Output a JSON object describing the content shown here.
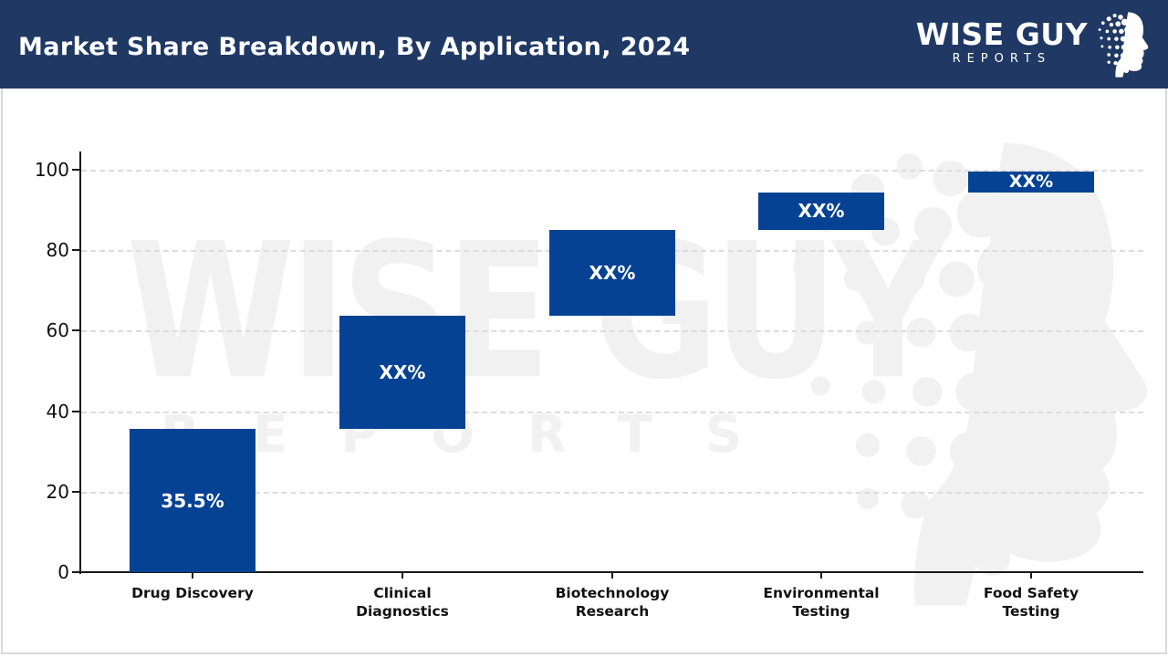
{
  "header": {
    "title": "Market Share Breakdown, By Application, 2024",
    "logo": {
      "line1": "WISE GUY",
      "line2": "REPORTS"
    }
  },
  "watermark": {
    "line1": "WISE GUY",
    "line2": "REPORTS"
  },
  "colors": {
    "header_bg": "#203864",
    "bar": "#064294",
    "bar_label": "#ffffff",
    "grid": "#dcdcdc",
    "axis": "#1a1a1a",
    "watermark": "#f1f1f1"
  },
  "chart_data": {
    "type": "bar",
    "subtype": "waterfall",
    "title": "Market Share Breakdown, By Application, 2024",
    "categories": [
      "Drug Discovery",
      "Clinical Diagnostics",
      "Biotechnology Research",
      "Environmental Testing",
      "Food Safety Testing"
    ],
    "category_label_lines": [
      [
        "Drug Discovery"
      ],
      [
        "Clinical",
        "Diagnostics"
      ],
      [
        "Biotechnology",
        "Research"
      ],
      [
        "Environmental",
        "Testing"
      ],
      [
        "Food Safety",
        "Testing"
      ]
    ],
    "segments": [
      {
        "category": "Drug Discovery",
        "start": 0,
        "end": 35.5,
        "label": "35.5%"
      },
      {
        "category": "Clinical Diagnostics",
        "start": 35.5,
        "end": 63.7,
        "label": "XX%"
      },
      {
        "category": "Biotechnology Research",
        "start": 63.7,
        "end": 84.9,
        "label": "XX%"
      },
      {
        "category": "Environmental Testing",
        "start": 85.0,
        "end": 94.3,
        "label": "XX%"
      },
      {
        "category": "Food Safety Testing",
        "start": 94.4,
        "end": 99.5,
        "label": "XX%"
      }
    ],
    "xlabel": "",
    "ylabel": "",
    "yticks": [
      0,
      20,
      40,
      60,
      80,
      100
    ],
    "ylim": [
      0,
      104.5
    ],
    "grid": "horizontal-dashed",
    "legend": "none"
  }
}
